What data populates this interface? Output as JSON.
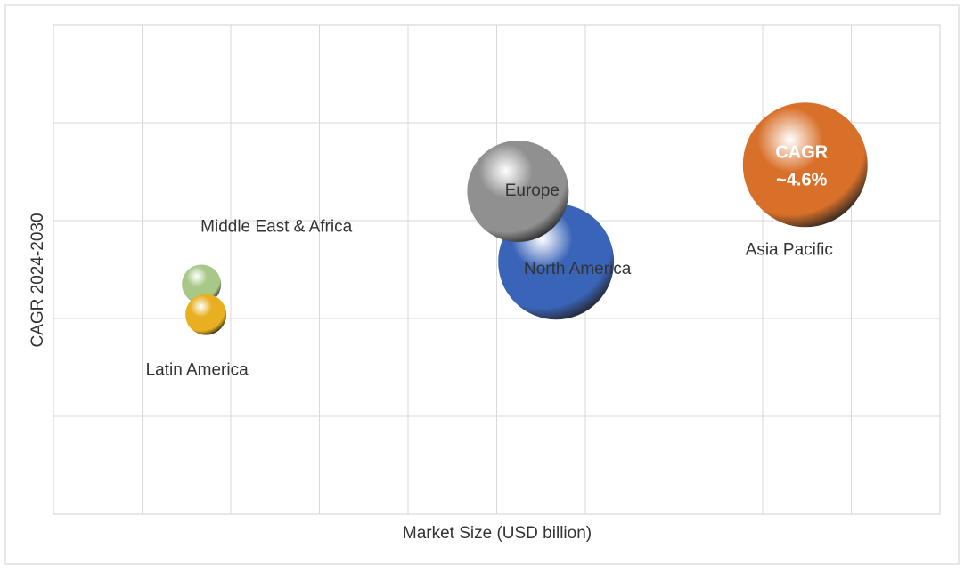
{
  "chart_data": {
    "type": "bubble",
    "x_label": "Market Size (USD billion)",
    "y_label": "CAGR 2024-2030",
    "xlim": [
      0,
      10
    ],
    "ylim": [
      0,
      5
    ],
    "grid": true,
    "points": [
      {
        "name": "Middle East & Africa",
        "color": "#a8c888",
        "x": 1.67,
        "y": 2.35,
        "size": 22
      },
      {
        "name": "Latin America",
        "color": "#e8b020",
        "x": 1.72,
        "y": 2.04,
        "size": 23
      },
      {
        "name": "North America",
        "color": "#3a64b8",
        "x": 5.67,
        "y": 2.58,
        "size": 65
      },
      {
        "name": "Europe",
        "color": "#909090",
        "x": 5.24,
        "y": 3.3,
        "size": 57
      },
      {
        "name": "Asia Pacific",
        "color": "#d8702a",
        "x": 8.48,
        "y": 3.57,
        "size": 70
      }
    ],
    "annotation": {
      "lines": [
        "CAGR",
        "~4.6%"
      ]
    }
  }
}
